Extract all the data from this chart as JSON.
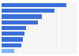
{
  "values": [
    85,
    70,
    53,
    48,
    32,
    30,
    28,
    26,
    17
  ],
  "bar_colors": [
    "#3a6fd8",
    "#3a6fd8",
    "#3a6fd8",
    "#3a6fd8",
    "#3a6fd8",
    "#3a6fd8",
    "#3a6fd8",
    "#3a6fd8",
    "#7fb3f5"
  ],
  "background_color": "#ffffff",
  "plot_bg_color": "#f5f5f5",
  "xlim": [
    0,
    100
  ],
  "grid_color": "#ffffff",
  "bar_height": 0.75
}
